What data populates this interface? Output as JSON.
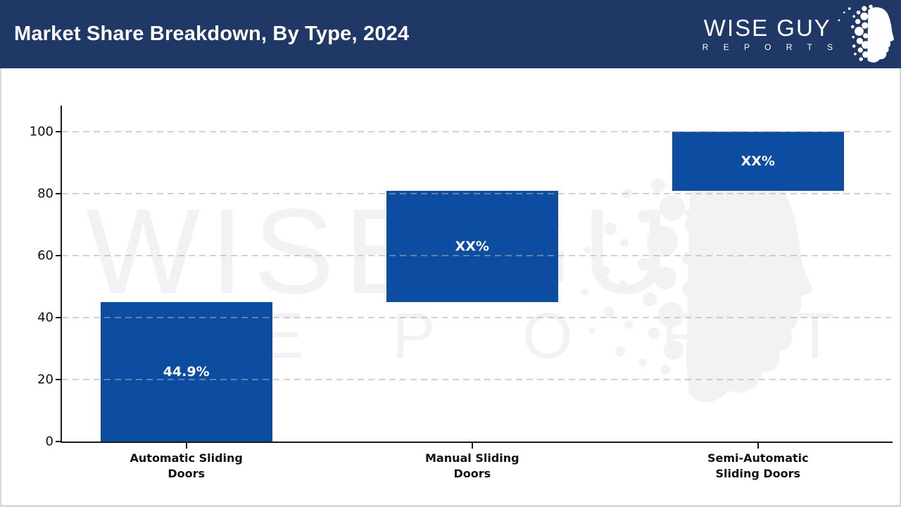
{
  "header": {
    "title": "Market Share Breakdown, By Type, 2024",
    "logo_line1": "WISE GUY",
    "logo_line2": "R E P O R T S"
  },
  "watermark": {
    "line1": "WISE GUY",
    "line2": "R E P O R T S"
  },
  "colors": {
    "header_bg": "#1f3866",
    "bar_blue": "#0c4da2",
    "axis_text": "#111111",
    "watermark_gray": "#f2f2f5"
  },
  "chart_data": {
    "type": "bar",
    "variant": "waterfall",
    "title": "Market Share Breakdown, By Type, 2024",
    "categories": [
      [
        "Automatic Sliding",
        "Doors"
      ],
      [
        "Manual Sliding",
        "Doors"
      ],
      [
        "Semi-Automatic",
        "Sliding Doors"
      ]
    ],
    "bars": [
      {
        "start": 0,
        "end": 44.9,
        "label": "44.9%"
      },
      {
        "start": 44.9,
        "end": 81,
        "label": "XX%"
      },
      {
        "start": 81,
        "end": 100,
        "label": "XX%"
      }
    ],
    "ytick_labels": [
      "0",
      "20",
      "40",
      "60",
      "80",
      "100"
    ],
    "ytick_values": [
      0,
      20,
      40,
      60,
      80,
      100
    ],
    "ylim": [
      0,
      108.5
    ],
    "xlabel": "",
    "ylabel": "",
    "grid": "horizontal-dashed",
    "legend": false,
    "bar_color": "#0c4da2",
    "bar_label_color": "#ffffff"
  }
}
